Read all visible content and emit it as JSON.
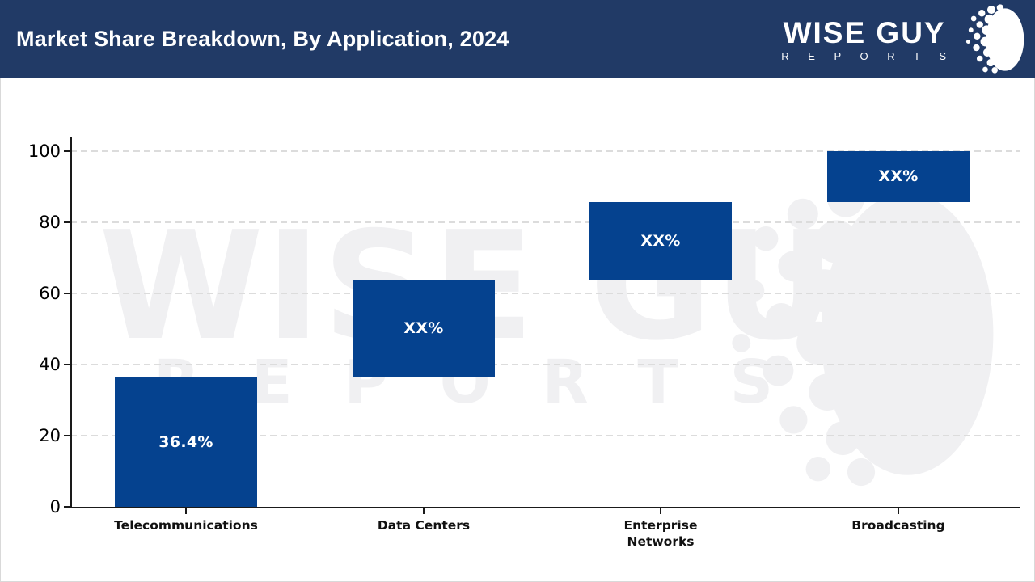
{
  "header": {
    "title": "Market Share Breakdown, By Application, 2024",
    "logo": {
      "line1": "WISE GUY",
      "line2": "R E P O R T S"
    }
  },
  "watermark": {
    "line1": "WISE GUY",
    "line2": "REPORTS"
  },
  "chart_data": {
    "type": "bar",
    "subtype": "floating-waterfall",
    "title": "Market Share Breakdown, By Application, 2024",
    "categories": [
      "Telecommunications",
      "Data Centers",
      "Enterprise Networks",
      "Broadcasting"
    ],
    "bars": [
      {
        "category": "Telecommunications",
        "category_display": "Telecommunications",
        "label": "36.4%",
        "start": 0,
        "end": 36.4
      },
      {
        "category": "Data Centers",
        "category_display": "Data Centers",
        "label": "XX%",
        "start": 36.4,
        "end": 63.9
      },
      {
        "category": "Enterprise Networks",
        "category_display": "Enterprise\nNetworks",
        "label": "XX%",
        "start": 63.9,
        "end": 85.7
      },
      {
        "category": "Broadcasting",
        "category_display": "Broadcasting",
        "label": "XX%",
        "start": 85.7,
        "end": 100
      }
    ],
    "ylim": [
      0,
      100
    ],
    "yticks": [
      0,
      20,
      40,
      60,
      80,
      100
    ],
    "xlabel": "",
    "ylabel": "",
    "grid": "horizontal-dashed",
    "legend": "none",
    "colors": {
      "bar": "#05428f",
      "bar_label": "#ffffff",
      "header_bg": "#213a66",
      "header_text": "#ffffff",
      "gridline": "#dcdcdc",
      "axis": "#1a1a1a",
      "watermark": "#f0f0f2"
    }
  }
}
